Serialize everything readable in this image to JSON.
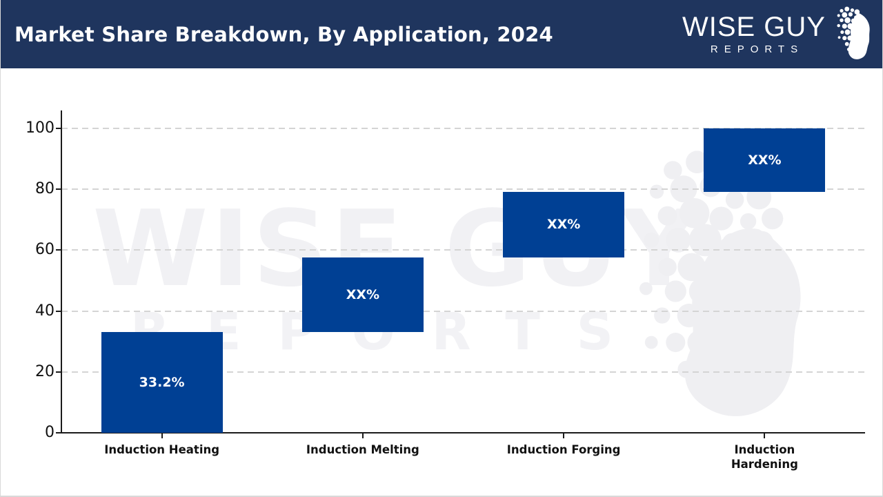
{
  "header": {
    "bg": "#1f355e",
    "title": "Market Share Breakdown, By Application, 2024",
    "logo": {
      "line1": "WISE GUY",
      "line2": "REPORTS"
    }
  },
  "watermark": {
    "line1": "WISE GUY",
    "line2": "REPORTS"
  },
  "chart_data": {
    "type": "bar",
    "subtype": "waterfall",
    "title": "Market Share Breakdown, By Application, 2024",
    "categories": [
      "Induction Heating",
      "Induction Melting",
      "Induction Forging",
      "Induction Hardening"
    ],
    "segments": [
      {
        "category": "Induction Heating",
        "start": 0,
        "end": 33.2,
        "label": "33.2%"
      },
      {
        "category": "Induction Melting",
        "start": 33.2,
        "end": 57.6,
        "label": "XX%"
      },
      {
        "category": "Induction Forging",
        "start": 57.6,
        "end": 79.2,
        "label": "XX%"
      },
      {
        "category": "Induction Hardening",
        "start": 79.2,
        "end": 100,
        "label": "XX%"
      }
    ],
    "ylim": [
      0,
      100
    ],
    "yticks": [
      0,
      20,
      40,
      60,
      80,
      100
    ],
    "xlabel": "",
    "ylabel": "",
    "grid": "dashed-horizontal",
    "legend": "none",
    "bar_color": "#004094",
    "bar_label_color": "#ffffff",
    "axis_color": "#1a1a1a",
    "grid_color": "#d4d4d4",
    "tick_label_color": "#111111"
  }
}
